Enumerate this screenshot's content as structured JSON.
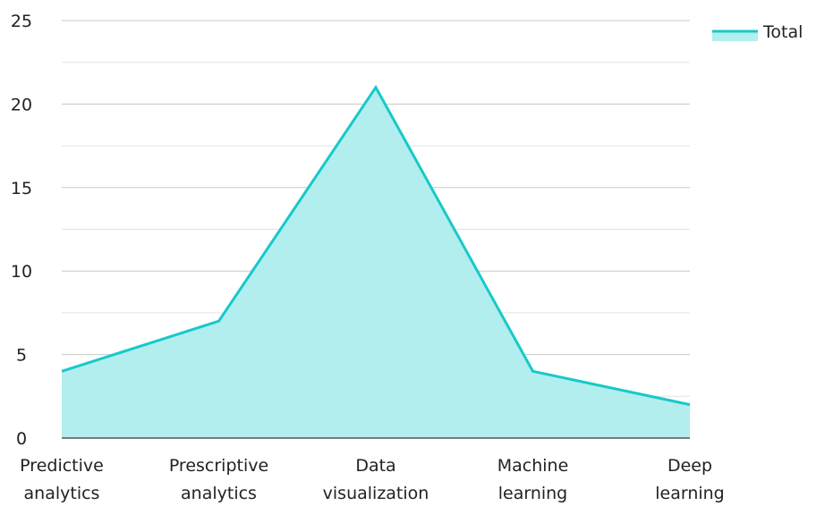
{
  "chart_data": {
    "type": "area",
    "categories": [
      "Predictive analytics",
      "Prescriptive analytics",
      "Data visualization",
      "Machine learning",
      "Deep learning"
    ],
    "category_lines": [
      [
        "Predictive",
        "analytics"
      ],
      [
        "Prescriptive",
        "analytics"
      ],
      [
        "Data",
        "visualization"
      ],
      [
        "Machine",
        "learning"
      ],
      [
        "Deep",
        "learning"
      ]
    ],
    "series": [
      {
        "name": "Total",
        "values": [
          4,
          7,
          21,
          4,
          2
        ]
      }
    ],
    "ylim": [
      0,
      25
    ],
    "yticks": [
      "0",
      "5",
      "10",
      "15",
      "20",
      "25"
    ],
    "grid": true,
    "legend_position": "top-right",
    "colors": {
      "line": "#17c9c9",
      "fill": "#b2eeed",
      "grid": "#cccccc",
      "axis": "#555555"
    }
  }
}
